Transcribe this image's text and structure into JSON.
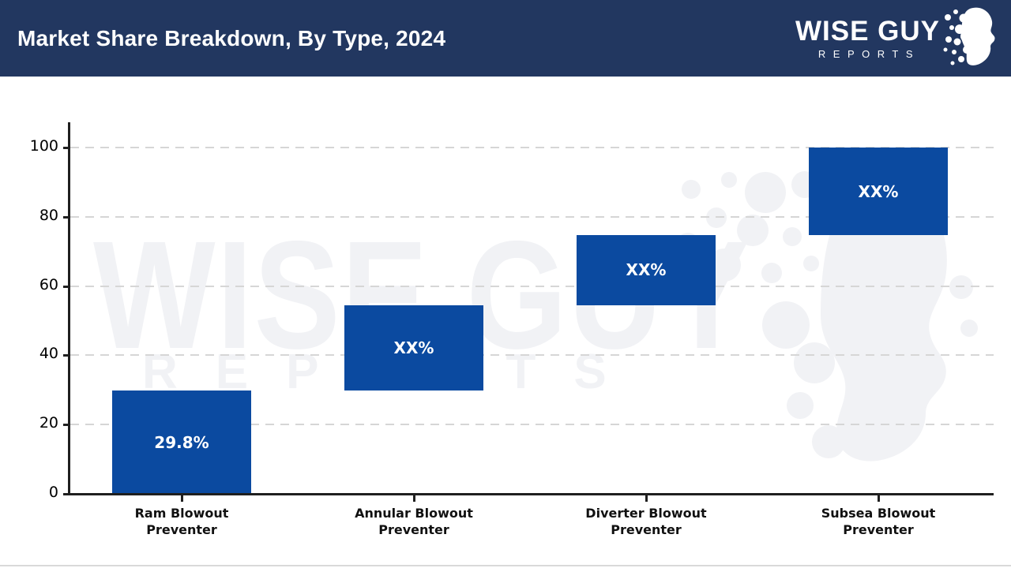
{
  "header": {
    "title": "Market Share Breakdown, By Type, 2024",
    "background": "#223760",
    "logo": {
      "wordmark": "WISE GUY",
      "subtext": "REPORTS"
    }
  },
  "watermark": {
    "line1": "WISE GUY",
    "line2": "REPORTS"
  },
  "chart_data": {
    "type": "bar",
    "subtype": "stacked-waterfall",
    "title": "Market Share Breakdown, By Type, 2024",
    "categories": [
      "Ram Blowout Preventer",
      "Annular Blowout Preventer",
      "Diverter Blowout Preventer",
      "Subsea Blowout Preventer"
    ],
    "segments": [
      {
        "category": "Ram Blowout Preventer",
        "start": 0,
        "end": 29.8,
        "label": "29.8%"
      },
      {
        "category": "Annular Blowout Preventer",
        "start": 29.8,
        "end": 54.5,
        "label": "XX%"
      },
      {
        "category": "Diverter Blowout Preventer",
        "start": 54.5,
        "end": 74.7,
        "label": "XX%"
      },
      {
        "category": "Subsea Blowout Preventer",
        "start": 74.7,
        "end": 100,
        "label": "XX%"
      }
    ],
    "xlabel": "",
    "ylabel": "",
    "ylim": [
      0,
      100
    ],
    "yticks": [
      0,
      20,
      40,
      60,
      80,
      100
    ],
    "grid": "horizontal-dashed",
    "legend": "none",
    "bar_color": "#0b4aa0",
    "label_color": "#ffffff"
  }
}
